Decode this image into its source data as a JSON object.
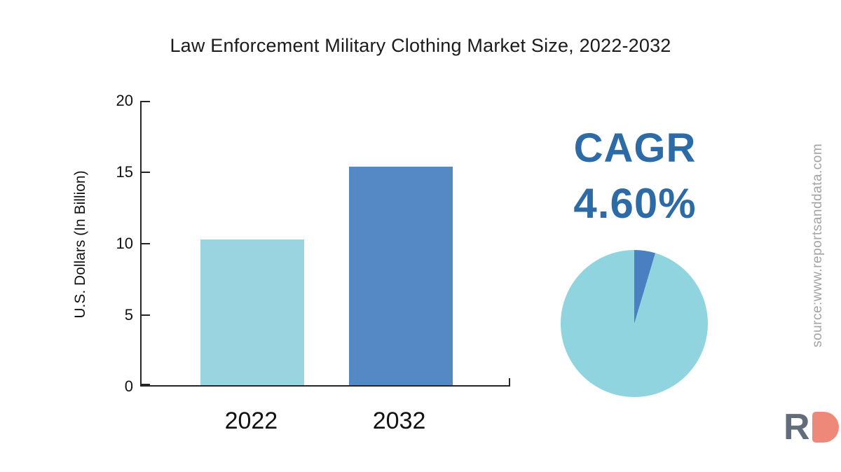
{
  "chart_data": [
    {
      "type": "bar",
      "title": "Law Enforcement Military Clothing Market Size, 2022-2032",
      "categories": [
        "2022",
        "2032"
      ],
      "values": [
        10.2,
        15.3
      ],
      "bar_colors": [
        "#9ad4e1",
        "#5489c5"
      ],
      "xlabel": "",
      "ylabel": "U.S. Dollars (In Billion)",
      "ylim": [
        0,
        20
      ],
      "yticks": [
        0,
        5,
        10,
        15,
        20
      ],
      "grid": false,
      "legend": false,
      "tick_direction": "in"
    },
    {
      "type": "pie",
      "labels": [
        "CAGR slice",
        "remainder"
      ],
      "values": [
        4.6,
        95.4
      ],
      "colors": [
        "#4a7fc1",
        "#8fd4df"
      ],
      "start_angle_deg": 0,
      "direction": "clockwise",
      "annotation": "CAGR 4.60%"
    }
  ],
  "cagr": {
    "label": "CAGR",
    "value": "4.60%",
    "color": "#2d6ba6"
  },
  "source_note": "source:www.reportsanddata.com",
  "logo": {
    "letter": "R",
    "letter_color": "#626d79",
    "accent_color": "#ee8878"
  },
  "colors": {
    "axis": "#262626",
    "text": "#111111",
    "source_text": "#a3a3a3",
    "background": "#ffffff"
  }
}
